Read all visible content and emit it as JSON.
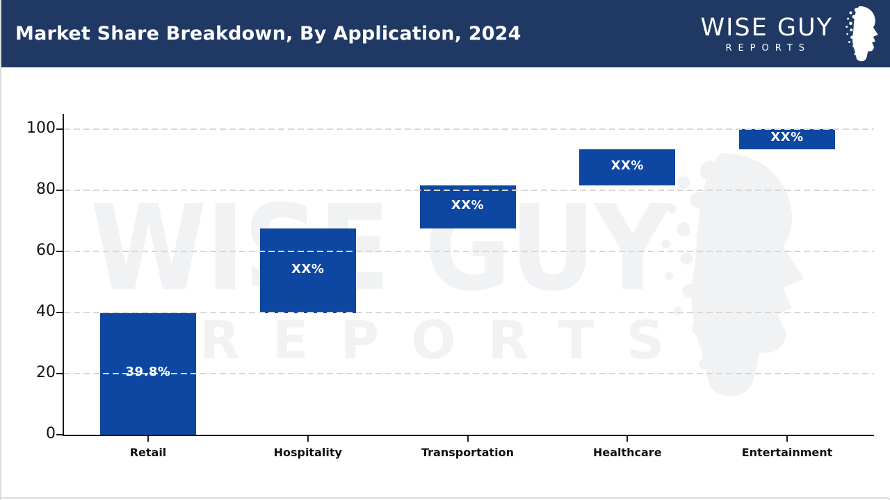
{
  "header": {
    "title": "Market Share Breakdown, By Application, 2024",
    "logo": {
      "line1": "WISE GUY",
      "line2": "REPORTS"
    }
  },
  "watermark": {
    "line1": "WISE GUY",
    "line2": "REPORTS"
  },
  "chart_data": {
    "type": "bar",
    "subtype": "waterfall",
    "title": "Market Share Breakdown, By Application, 2024",
    "categories": [
      "Retail",
      "Hospitality",
      "Transportation",
      "Healthcare",
      "Entertainment"
    ],
    "segments": [
      {
        "category": "Retail",
        "start": 0,
        "end": 39.8,
        "label": "39.8%"
      },
      {
        "category": "Hospitality",
        "start": 39.8,
        "end": 67.5,
        "label": "XX%"
      },
      {
        "category": "Transportation",
        "start": 67.5,
        "end": 81.5,
        "label": "XX%"
      },
      {
        "category": "Healthcare",
        "start": 81.5,
        "end": 93.5,
        "label": "XX%"
      },
      {
        "category": "Entertainment",
        "start": 93.5,
        "end": 100,
        "label": "XX%"
      }
    ],
    "xlabel": "",
    "ylabel": "",
    "yticks": [
      0,
      20,
      40,
      60,
      80,
      100
    ],
    "ylim": [
      0,
      105
    ],
    "grid": "horizontal-dashed",
    "legend": "none",
    "colors": {
      "bar": "#0d47a1",
      "bar_label_text": "#ffffff",
      "grid": "#d8d8d8",
      "axis": "#1a1a1a",
      "header_bg": "#1f3864",
      "watermark": "#f1f2f4"
    }
  }
}
